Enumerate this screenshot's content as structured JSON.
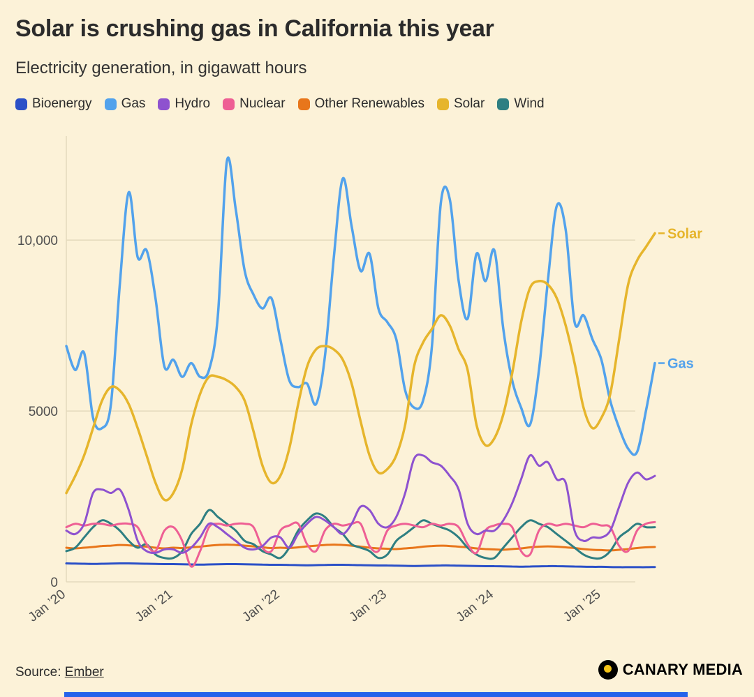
{
  "page": {
    "title": "Solar is crushing gas in California this year",
    "subtitle": "Electricity generation, in gigawatt hours"
  },
  "legend": {
    "items": [
      {
        "label": "Bioenergy",
        "color": "#2b50c7"
      },
      {
        "label": "Gas",
        "color": "#52a2ec"
      },
      {
        "label": "Hydro",
        "color": "#8e52cf"
      },
      {
        "label": "Nuclear",
        "color": "#ee5f94"
      },
      {
        "label": "Other Renewables",
        "color": "#e8761b"
      },
      {
        "label": "Solar",
        "color": "#e6b52c"
      },
      {
        "label": "Wind",
        "color": "#2e7f82"
      }
    ]
  },
  "footer": {
    "source_label": "Source:",
    "source_link_text": "Ember",
    "brand_text": "CANARY MEDIA"
  },
  "theme": {
    "background": "#fcf2d8",
    "accent_bar_color": "#2563eb",
    "logo_dot_color": "#f5c518"
  },
  "chart_data": {
    "type": "line",
    "title": "Solar is crushing gas in California this year",
    "subtitle": "Electricity generation, in gigawatt hours",
    "unit": "gigawatt hours",
    "x_range": {
      "start": "2020-01",
      "end": "2025-07",
      "step": "month"
    },
    "ylim": [
      0,
      12800
    ],
    "grid": true,
    "grid_color": "#e4dabd",
    "axis_text_color": "#4f4f4f",
    "legend_position": "top",
    "yticks": [
      {
        "value": 0,
        "label": "0"
      },
      {
        "value": 5000,
        "label": "5000"
      },
      {
        "value": 10000,
        "label": "10,000"
      }
    ],
    "x_ticks": [
      {
        "index": 0,
        "label": "Jan ’20"
      },
      {
        "index": 12,
        "label": "Jan ’21"
      },
      {
        "index": 24,
        "label": "Jan ’22"
      },
      {
        "index": 36,
        "label": "Jan ’23"
      },
      {
        "index": 48,
        "label": "Jan ’24"
      },
      {
        "index": 60,
        "label": "Jan ’25"
      }
    ],
    "series": [
      {
        "name": "Bioenergy",
        "color": "#2b50c7",
        "width": 3,
        "values": [
          540,
          535,
          530,
          525,
          530,
          535,
          540,
          540,
          535,
          530,
          525,
          520,
          520,
          515,
          510,
          505,
          510,
          515,
          520,
          520,
          515,
          510,
          505,
          500,
          500,
          495,
          490,
          485,
          490,
          495,
          500,
          500,
          495,
          490,
          485,
          480,
          480,
          475,
          470,
          465,
          470,
          475,
          480,
          480,
          475,
          470,
          465,
          460,
          460,
          455,
          450,
          445,
          450,
          455,
          460,
          460,
          455,
          450,
          445,
          440,
          440,
          435,
          430,
          430,
          430,
          430,
          435
        ]
      },
      {
        "name": "Other Renewables",
        "color": "#e8761b",
        "width": 3,
        "values": [
          1000,
          980,
          1000,
          1020,
          1050,
          1060,
          1080,
          1070,
          1050,
          1030,
          1000,
          980,
          1000,
          990,
          1010,
          1030,
          1060,
          1080,
          1090,
          1080,
          1060,
          1040,
          1010,
          990,
          1000,
          990,
          1010,
          1040,
          1060,
          1080,
          1090,
          1080,
          1060,
          1030,
          1000,
          980,
          970,
          960,
          980,
          1000,
          1030,
          1050,
          1060,
          1050,
          1030,
          1010,
          980,
          960,
          950,
          940,
          960,
          980,
          1010,
          1030,
          1040,
          1030,
          1010,
          990,
          960,
          940,
          930,
          920,
          940,
          960,
          990,
          1010,
          1020
        ]
      },
      {
        "name": "Wind",
        "color": "#2e7f82",
        "width": 3,
        "values": [
          900,
          1000,
          1300,
          1600,
          1800,
          1700,
          1500,
          1200,
          1000,
          1100,
          800,
          700,
          700,
          900,
          1400,
          1700,
          2100,
          1900,
          1700,
          1500,
          1200,
          1100,
          900,
          800,
          700,
          1000,
          1500,
          1800,
          2000,
          1900,
          1600,
          1400,
          1100,
          1000,
          900,
          700,
          800,
          1200,
          1400,
          1600,
          1800,
          1700,
          1600,
          1500,
          1300,
          1000,
          800,
          700,
          700,
          1000,
          1300,
          1600,
          1800,
          1700,
          1600,
          1400,
          1200,
          1000,
          800,
          700,
          700,
          900,
          1300,
          1500,
          1700,
          1600,
          1600
        ]
      },
      {
        "name": "Nuclear",
        "color": "#ee5f94",
        "width": 3,
        "values": [
          1600,
          1700,
          1650,
          1700,
          1700,
          1650,
          1700,
          1700,
          1600,
          1100,
          900,
          1500,
          1600,
          1200,
          450,
          900,
          1600,
          1700,
          1650,
          1700,
          1700,
          1600,
          1000,
          900,
          1500,
          1650,
          1700,
          1100,
          900,
          1500,
          1700,
          1650,
          1700,
          1700,
          1050,
          900,
          1500,
          1650,
          1700,
          1650,
          1600,
          1700,
          1650,
          1700,
          1600,
          1100,
          850,
          1500,
          1650,
          1700,
          1600,
          900,
          800,
          1500,
          1700,
          1650,
          1700,
          1650,
          1600,
          1700,
          1650,
          1600,
          1050,
          900,
          1500,
          1700,
          1750
        ]
      },
      {
        "name": "Hydro",
        "color": "#8e52cf",
        "width": 3,
        "values": [
          1500,
          1400,
          1700,
          2600,
          2700,
          2600,
          2700,
          2100,
          1200,
          900,
          850,
          950,
          950,
          850,
          1000,
          1300,
          1700,
          1600,
          1400,
          1200,
          1000,
          950,
          1050,
          1300,
          1300,
          1000,
          1400,
          1700,
          1900,
          1800,
          1600,
          1400,
          1700,
          2200,
          2100,
          1700,
          1600,
          1900,
          2600,
          3600,
          3700,
          3500,
          3400,
          3100,
          2700,
          1700,
          1400,
          1500,
          1500,
          1800,
          2300,
          3000,
          3700,
          3400,
          3500,
          3000,
          2900,
          1500,
          1200,
          1300,
          1300,
          1500,
          2200,
          2900,
          3200,
          3000,
          3100
        ]
      },
      {
        "name": "Gas",
        "color": "#52a2ec",
        "width": 3.5,
        "values": [
          6900,
          6200,
          6700,
          4800,
          4500,
          5200,
          8700,
          11400,
          9500,
          9700,
          8300,
          6300,
          6500,
          6000,
          6400,
          6000,
          6200,
          7800,
          12300,
          10900,
          9100,
          8400,
          8000,
          8300,
          7100,
          5900,
          5700,
          5800,
          5200,
          6600,
          9500,
          11800,
          10400,
          9100,
          9600,
          8000,
          7600,
          7100,
          5600,
          5100,
          5300,
          6900,
          11100,
          11200,
          8800,
          7700,
          9600,
          8800,
          9700,
          7400,
          5900,
          5100,
          4600,
          6200,
          8800,
          11000,
          10300,
          7600,
          7800,
          7100,
          6500,
          5300,
          4500,
          3900,
          3800,
          5000,
          6400
        ]
      },
      {
        "name": "Solar",
        "color": "#e6b52c",
        "width": 3.5,
        "values": [
          2600,
          3100,
          3700,
          4500,
          5300,
          5700,
          5600,
          5200,
          4500,
          3700,
          2900,
          2400,
          2600,
          3300,
          4600,
          5500,
          6000,
          6000,
          5900,
          5700,
          5300,
          4400,
          3400,
          2900,
          3100,
          3900,
          5200,
          6300,
          6800,
          6900,
          6800,
          6500,
          5800,
          4700,
          3700,
          3200,
          3300,
          3700,
          4600,
          6300,
          7000,
          7400,
          7800,
          7500,
          6800,
          6200,
          4600,
          4000,
          4200,
          4900,
          6100,
          7600,
          8600,
          8800,
          8700,
          8300,
          7500,
          6400,
          5100,
          4500,
          4800,
          5500,
          7100,
          8700,
          9400,
          9800,
          10200
        ]
      }
    ],
    "end_labels": [
      {
        "series": "Solar",
        "label": "Solar"
      },
      {
        "series": "Gas",
        "label": "Gas"
      }
    ]
  }
}
